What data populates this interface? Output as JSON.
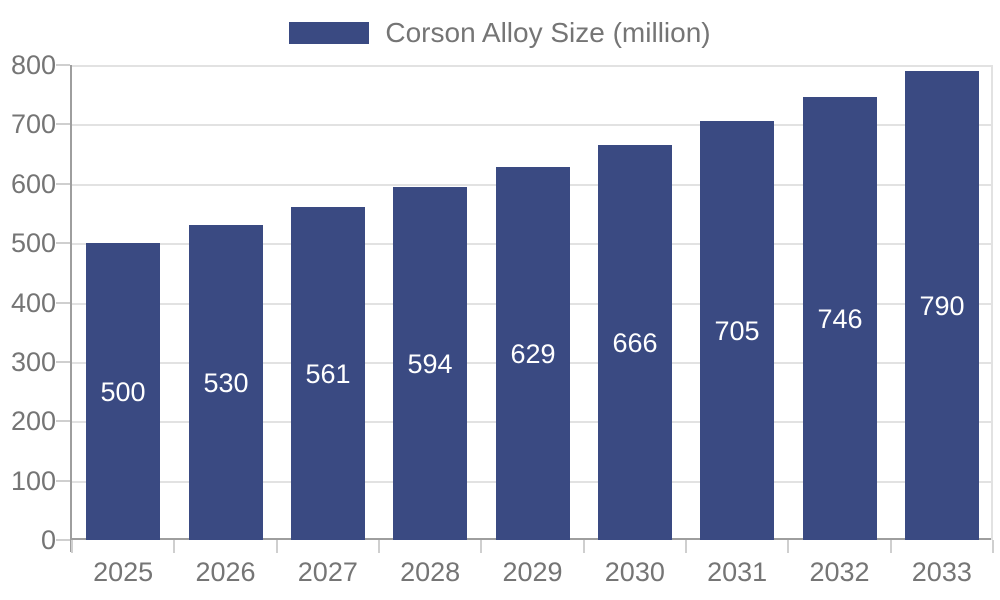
{
  "chart_data": {
    "type": "bar",
    "title": "",
    "legend": "Corson Alloy Size (million)",
    "legend_position": "top",
    "categories": [
      "2025",
      "2026",
      "2027",
      "2028",
      "2029",
      "2030",
      "2031",
      "2032",
      "2033"
    ],
    "series": [
      {
        "name": "Corson Alloy Size (million)",
        "values": [
          500,
          530,
          561,
          594,
          629,
          666,
          705,
          746,
          790
        ]
      }
    ],
    "xlabel": "",
    "ylabel": "",
    "ylim": [
      0,
      800
    ],
    "ytick_interval": 100,
    "yticks": [
      0,
      100,
      200,
      300,
      400,
      500,
      600,
      700,
      800
    ],
    "grid": true,
    "colors": {
      "bar": "#3a4a82",
      "bar_value_label": "#ffffff",
      "axis_line": "#9e9e9e",
      "gridline": "#e2e2e2",
      "tick_text": "#757575",
      "legend_text": "#757575",
      "background": "#ffffff"
    }
  }
}
